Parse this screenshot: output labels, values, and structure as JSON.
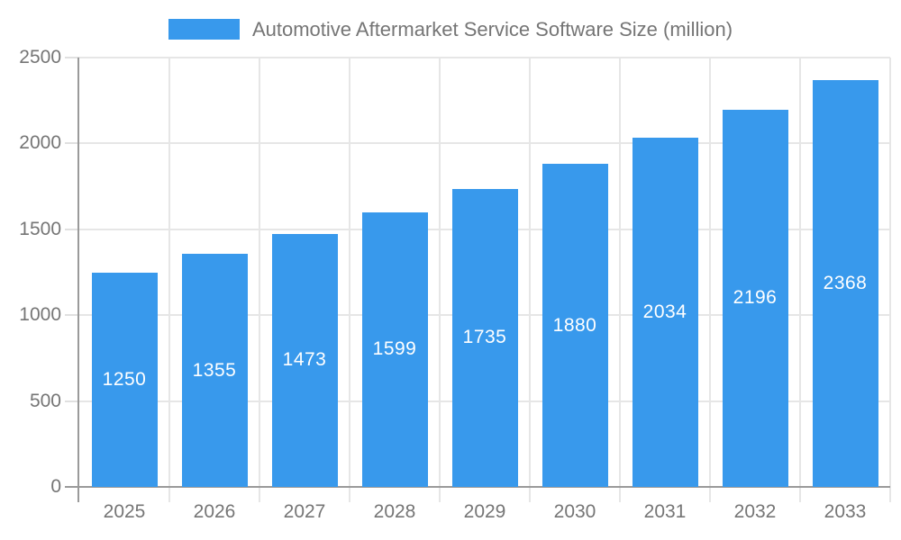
{
  "chart_data": {
    "type": "bar",
    "title": "Automotive Aftermarket Service Software Size (million)",
    "categories": [
      "2025",
      "2026",
      "2027",
      "2028",
      "2029",
      "2030",
      "2031",
      "2032",
      "2033"
    ],
    "values": [
      1250,
      1355,
      1473,
      1599,
      1735,
      1880,
      2034,
      2196,
      2368
    ],
    "xlabel": "",
    "ylabel": "",
    "ylim": [
      0,
      2500
    ],
    "yticks": [
      0,
      500,
      1000,
      1500,
      2000,
      2500
    ],
    "grid": true,
    "legend_position": "top",
    "bar_labels_inside": true,
    "colors": {
      "bar": "#3899EC",
      "bar_label": "#FFFFFF",
      "axis_text": "#757575",
      "title_text": "#757575",
      "grid_line": "#E6E6E6",
      "tick_line": "#E0E0E0",
      "axis_line": "#9A9A9A",
      "background": "#FFFFFF"
    }
  }
}
